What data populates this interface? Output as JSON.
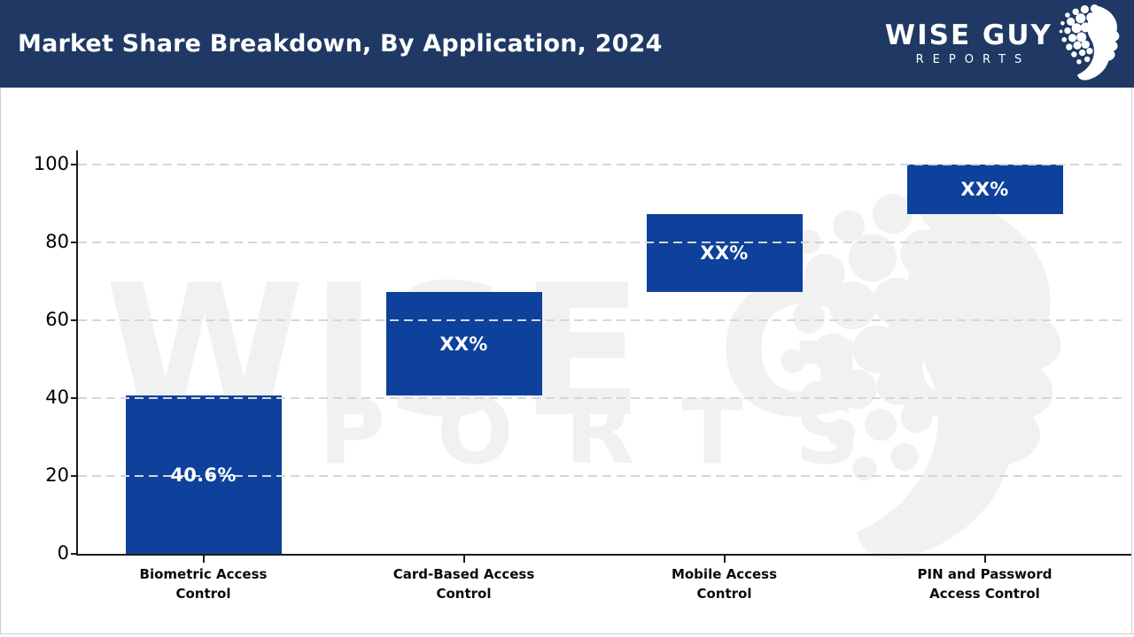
{
  "header": {
    "title": "Market Share Breakdown, By Application, 2024",
    "logo": {
      "line1": "WISE GUY",
      "line2": "REPORTS"
    }
  },
  "watermark": {
    "line1": "WISE GU",
    "line2": "PORTS"
  },
  "colors": {
    "header_bg": "#1f3864",
    "header_text": "#ffffff",
    "bar": "#0d419c",
    "bar_label_text": "#ffffff",
    "gridline": "#d6d6d6",
    "axis": "#1c1c1c",
    "watermark": "#f1f1f2"
  },
  "chart_data": {
    "type": "bar",
    "subtype": "waterfall",
    "title": "Market Share Breakdown, By Application, 2024",
    "categories": [
      {
        "line1": "Biometric Access",
        "line2": "Control"
      },
      {
        "line1": "Card-Based Access",
        "line2": "Control"
      },
      {
        "line1": "Mobile Access",
        "line2": "Control"
      },
      {
        "line1": "PIN and Password",
        "line2": "Access Control"
      }
    ],
    "segments": [
      {
        "start": 0,
        "end": 40.6,
        "label": "40.6%"
      },
      {
        "start": 40.6,
        "end": 67.3,
        "label": "XX%"
      },
      {
        "start": 67.3,
        "end": 87.3,
        "label": "XX%"
      },
      {
        "start": 87.3,
        "end": 100,
        "label": "XX%"
      }
    ],
    "increments": [
      40.6,
      26.7,
      20,
      12.7
    ],
    "yticks": [
      0,
      20,
      40,
      60,
      80,
      100
    ],
    "ylim": [
      0,
      103.5
    ],
    "xlabel": "",
    "ylabel": "",
    "grid": "horizontal-dashed-over-bars",
    "legend": "none"
  }
}
